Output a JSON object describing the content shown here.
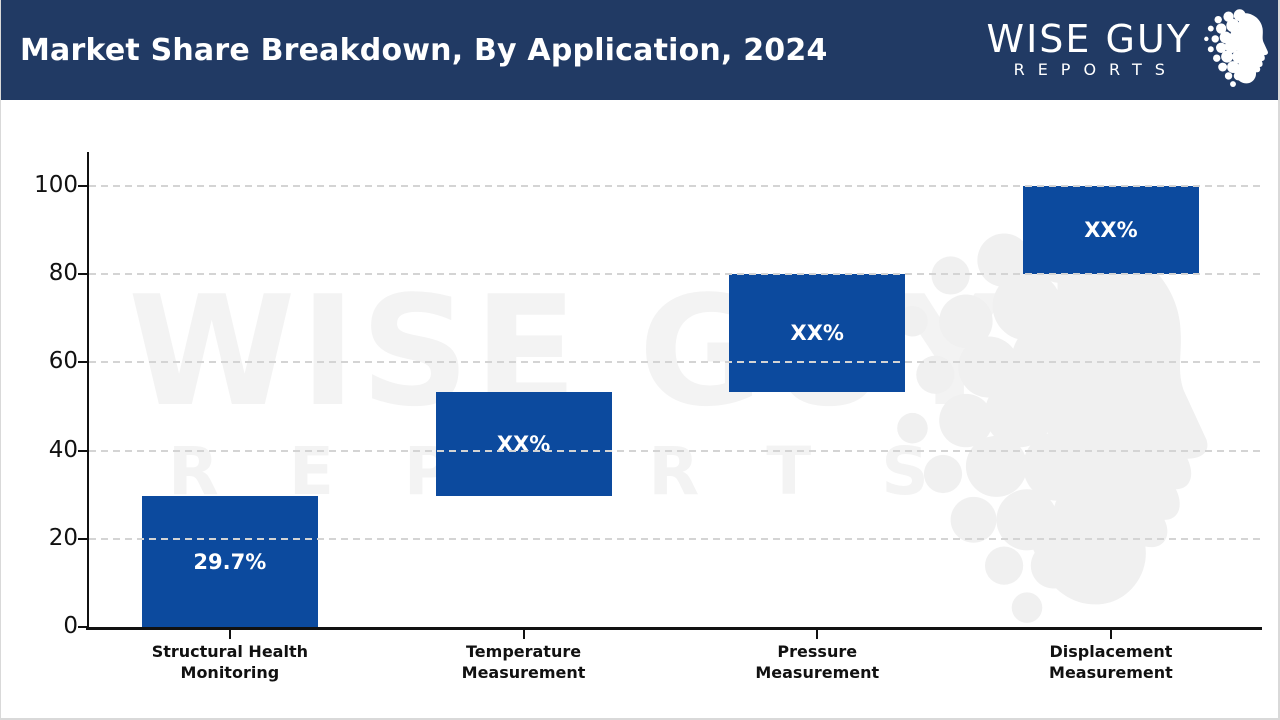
{
  "header": {
    "title": "Market Share Breakdown, By Application, 2024",
    "bg_color": "#213a64",
    "brand": {
      "line1": "WISE GUY",
      "line2": "REPORTS"
    }
  },
  "watermark": {
    "line1": "WISE GUY",
    "line2": "REPORTS"
  },
  "chart_data": {
    "type": "bar",
    "subtype": "waterfall",
    "title": "Market Share Breakdown, By Application, 2024",
    "categories": [
      [
        "Structural Health",
        "Monitoring"
      ],
      [
        "Temperature",
        "Measurement"
      ],
      [
        "Pressure",
        "Measurement"
      ],
      [
        "Displacement",
        "Measurement"
      ]
    ],
    "bars": [
      {
        "label": "29.7%",
        "start": 0,
        "end": 29.7
      },
      {
        "label": "XX%",
        "start": 29.7,
        "end": 53.3
      },
      {
        "label": "XX%",
        "start": 53.3,
        "end": 80
      },
      {
        "label": "XX%",
        "start": 80,
        "end": 100
      }
    ],
    "bar_color": "#0c4a9e",
    "bar_label_color": "#ffffff",
    "ylim": [
      0,
      100
    ],
    "yticks": [
      0,
      20,
      40,
      60,
      80,
      100
    ],
    "grid": {
      "axis": "y",
      "style": "dashed",
      "color": "#d4d4d4",
      "on_top": true
    },
    "axis_color": "#111111",
    "legend": "none"
  }
}
